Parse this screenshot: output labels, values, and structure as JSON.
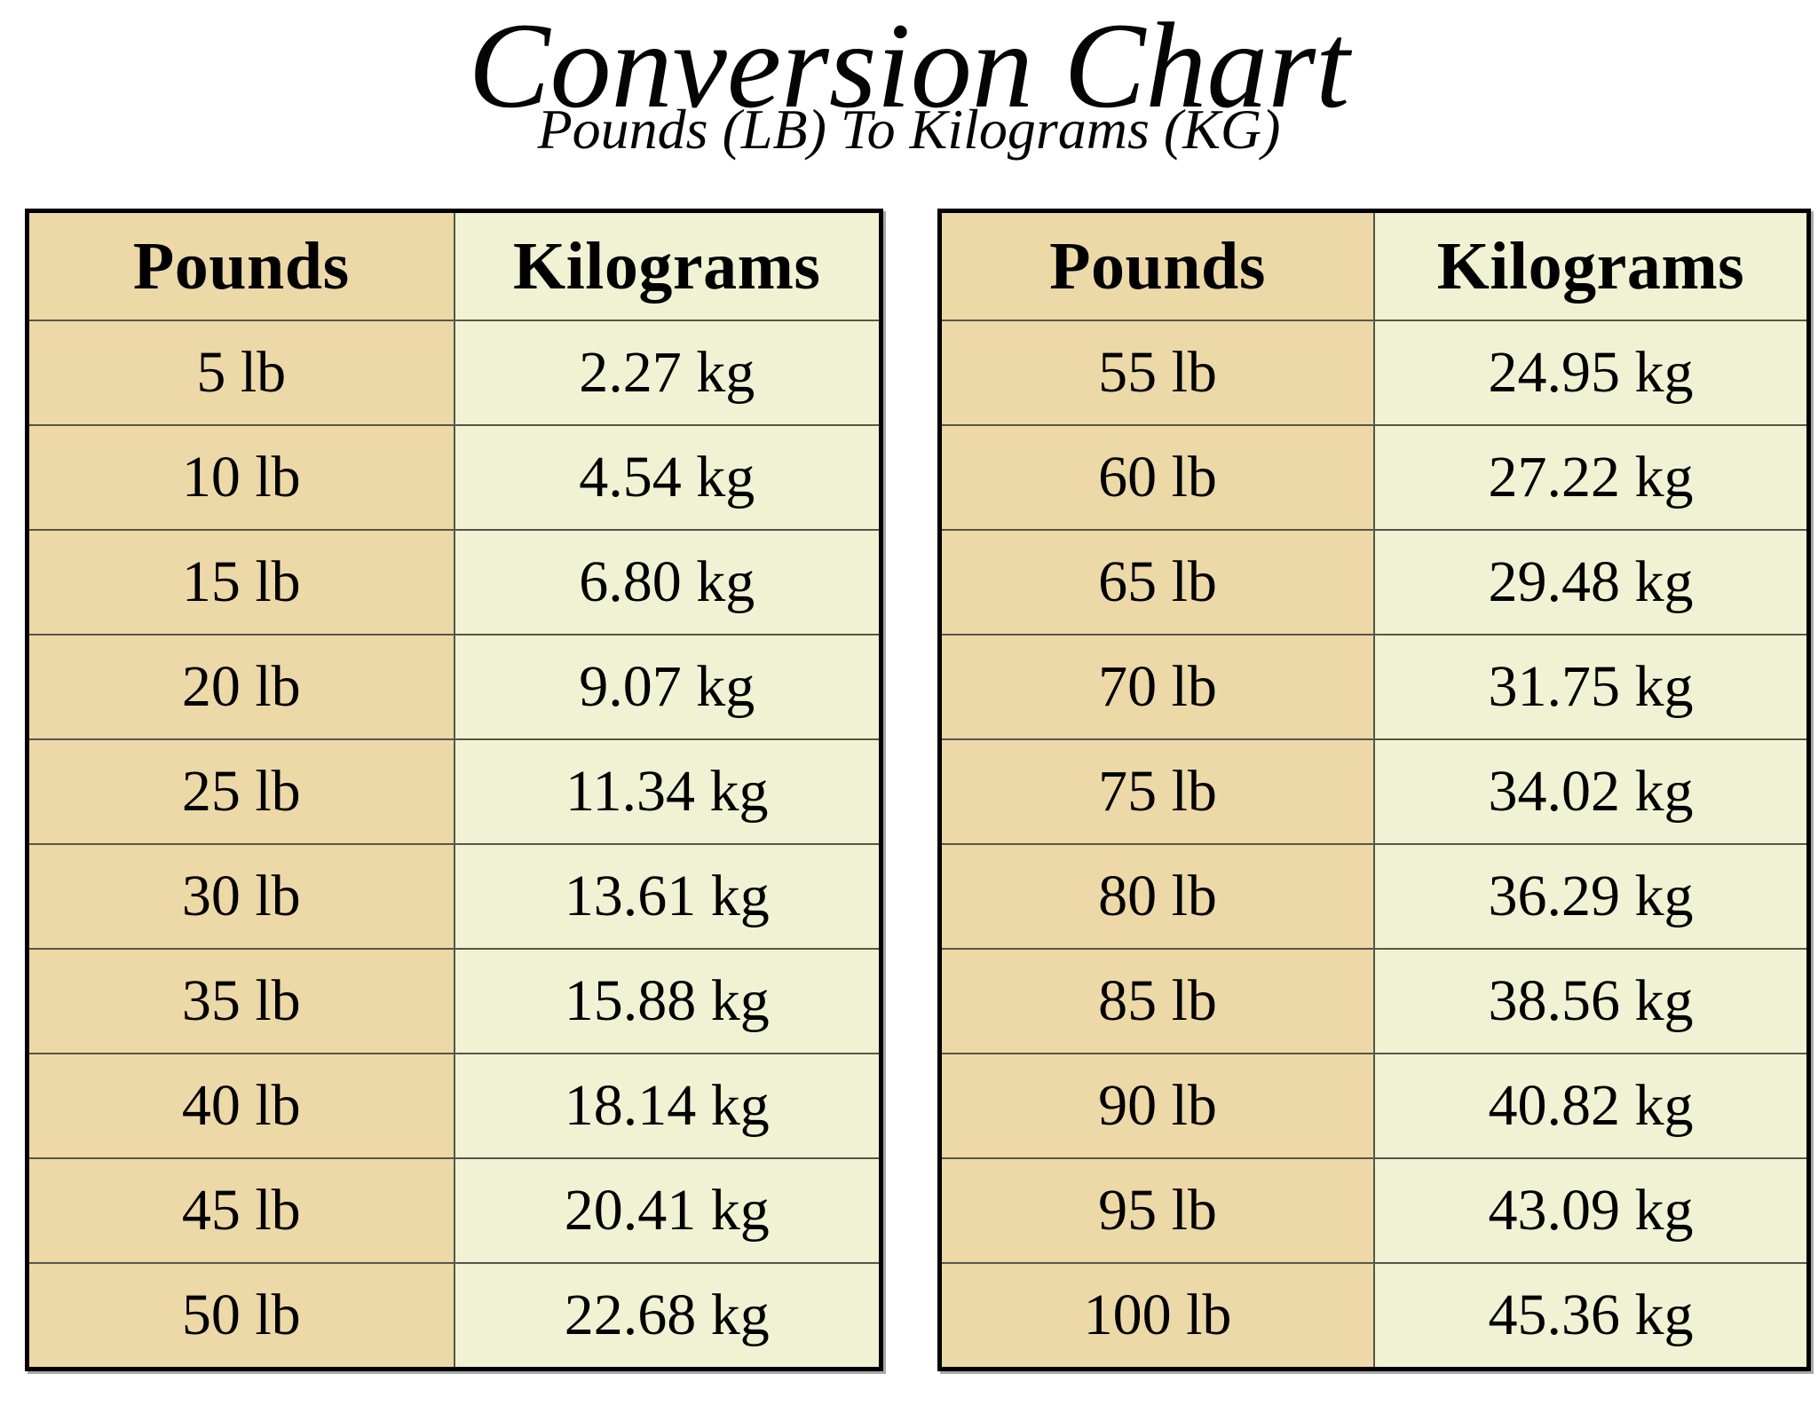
{
  "title": "Conversion Chart",
  "subtitle": "Pounds (LB) To Kilograms (KG)",
  "tables": [
    {
      "headers": {
        "pounds": "Pounds",
        "kilograms": "Kilograms"
      },
      "rows": [
        {
          "lb": "5 lb",
          "kg": "2.27 kg"
        },
        {
          "lb": "10 lb",
          "kg": "4.54 kg"
        },
        {
          "lb": "15 lb",
          "kg": "6.80 kg"
        },
        {
          "lb": "20 lb",
          "kg": "9.07 kg"
        },
        {
          "lb": "25 lb",
          "kg": "11.34 kg"
        },
        {
          "lb": "30 lb",
          "kg": "13.61 kg"
        },
        {
          "lb": "35 lb",
          "kg": "15.88 kg"
        },
        {
          "lb": "40 lb",
          "kg": "18.14 kg"
        },
        {
          "lb": "45 lb",
          "kg": "20.41 kg"
        },
        {
          "lb": "50 lb",
          "kg": "22.68 kg"
        }
      ]
    },
    {
      "headers": {
        "pounds": "Pounds",
        "kilograms": "Kilograms"
      },
      "rows": [
        {
          "lb": "55 lb",
          "kg": "24.95 kg"
        },
        {
          "lb": "60 lb",
          "kg": "27.22 kg"
        },
        {
          "lb": "65 lb",
          "kg": "29.48 kg"
        },
        {
          "lb": "70 lb",
          "kg": "31.75 kg"
        },
        {
          "lb": "75 lb",
          "kg": "34.02 kg"
        },
        {
          "lb": "80 lb",
          "kg": "36.29 kg"
        },
        {
          "lb": "85 lb",
          "kg": "38.56 kg"
        },
        {
          "lb": "90 lb",
          "kg": "40.82 kg"
        },
        {
          "lb": "95 lb",
          "kg": "43.09 kg"
        },
        {
          "lb": "100 lb",
          "kg": "45.36 kg"
        }
      ]
    }
  ],
  "colors": {
    "pounds_column_bg": "#edd9a7",
    "kilograms_column_bg": "#f0f2d3",
    "grid_line": "#55564a",
    "outer_border": "#000000",
    "page_background": "#ffffff",
    "text": "#000000"
  }
}
